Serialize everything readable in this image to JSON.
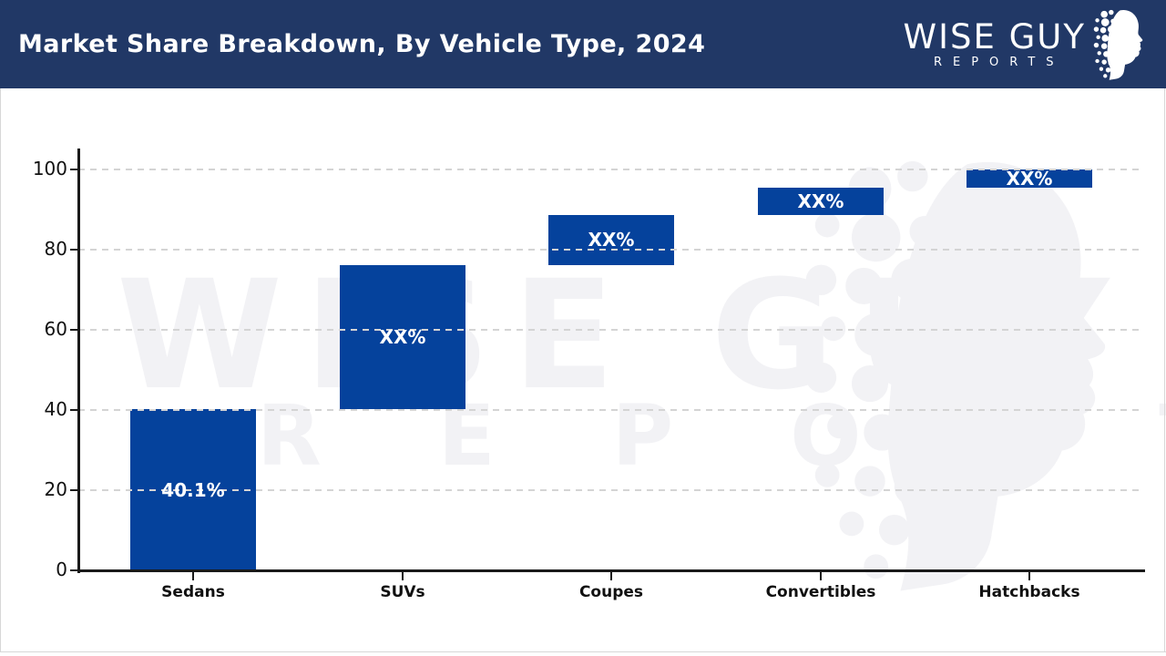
{
  "header": {
    "title": "Market Share Breakdown, By Vehicle Type, 2024",
    "logo": {
      "primary": "WISE GUY",
      "secondary": "REPORTS"
    }
  },
  "watermark": {
    "primary": "WISE GUY",
    "secondary": "R E P O R T S"
  },
  "chart_data": {
    "type": "bar",
    "subtype": "waterfall",
    "title": "Market Share Breakdown, By Vehicle Type, 2024",
    "categories": [
      "Sedans",
      "SUVs",
      "Coupes",
      "Convertibles",
      "Hatchbacks"
    ],
    "segments": [
      {
        "category": "Sedans",
        "start": 0,
        "end": 40.1,
        "label": "40.1%"
      },
      {
        "category": "SUVs",
        "start": 40.1,
        "end": 76.1,
        "label": "XX%"
      },
      {
        "category": "Coupes",
        "start": 76.1,
        "end": 88.6,
        "label": "XX%"
      },
      {
        "category": "Convertibles",
        "start": 88.6,
        "end": 95.4,
        "label": "XX%"
      },
      {
        "category": "Hatchbacks",
        "start": 95.4,
        "end": 100,
        "label": "XX%"
      }
    ],
    "yticks": [
      0,
      20,
      40,
      60,
      80,
      100
    ],
    "ylim": [
      0,
      105
    ],
    "grid": "horizontal-dashed",
    "legend": "none",
    "colors": {
      "bar": "#05429c",
      "bar_label": "#ffffff",
      "axis": "#1a1a1a",
      "gridline": "#d4d4d4",
      "header_bg": "#213866",
      "header_text": "#ffffff",
      "watermark": "#f2f2f5"
    }
  }
}
